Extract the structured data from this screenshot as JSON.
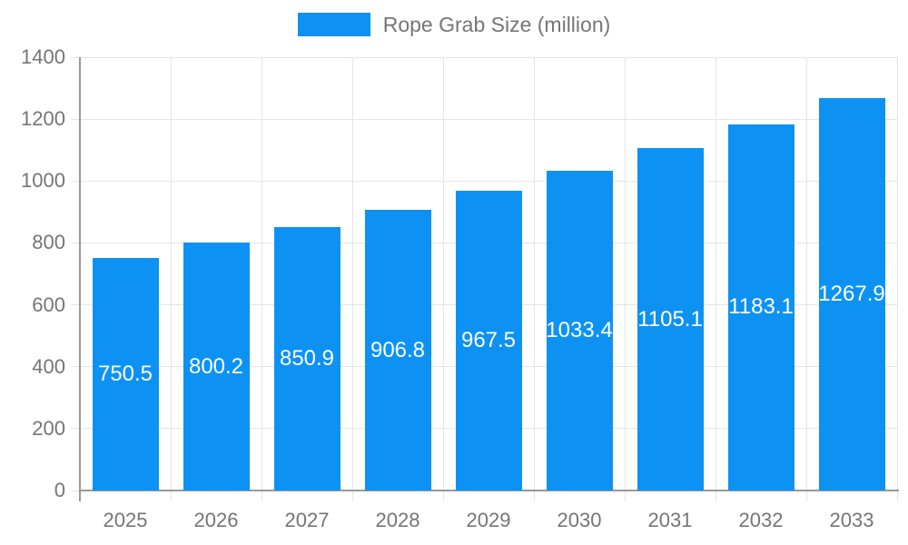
{
  "chart_data": {
    "type": "bar",
    "title": "Rope Grab Size (million)",
    "legend": {
      "position": "top",
      "entries": [
        {
          "label": "Rope Grab Size (million)",
          "swatch_color": "#0d92f4"
        }
      ]
    },
    "categories": [
      "2025",
      "2026",
      "2027",
      "2028",
      "2029",
      "2030",
      "2031",
      "2032",
      "2033"
    ],
    "series": [
      {
        "name": "Rope Grab Size (million)",
        "values": [
          750.5,
          800.2,
          850.9,
          906.8,
          967.5,
          1033.4,
          1105.1,
          1183.1,
          1267.9
        ]
      }
    ],
    "data_labels": [
      "750.5",
      "800.2",
      "850.9",
      "906.8",
      "967.5",
      "1033.4",
      "1105.1",
      "1183.1",
      "1267.9"
    ],
    "xlabel": "",
    "ylabel": "",
    "ylim": [
      0,
      1400
    ],
    "yticks": [
      0,
      200,
      400,
      600,
      800,
      1000,
      1200,
      1400
    ],
    "grid": true,
    "colors": {
      "bar": "#0d92f4",
      "bar_label": "#ffffff",
      "grid": "#e5e5e5",
      "axis_line": "#999999",
      "tick_text": "#757575",
      "background": "#ffffff"
    }
  }
}
